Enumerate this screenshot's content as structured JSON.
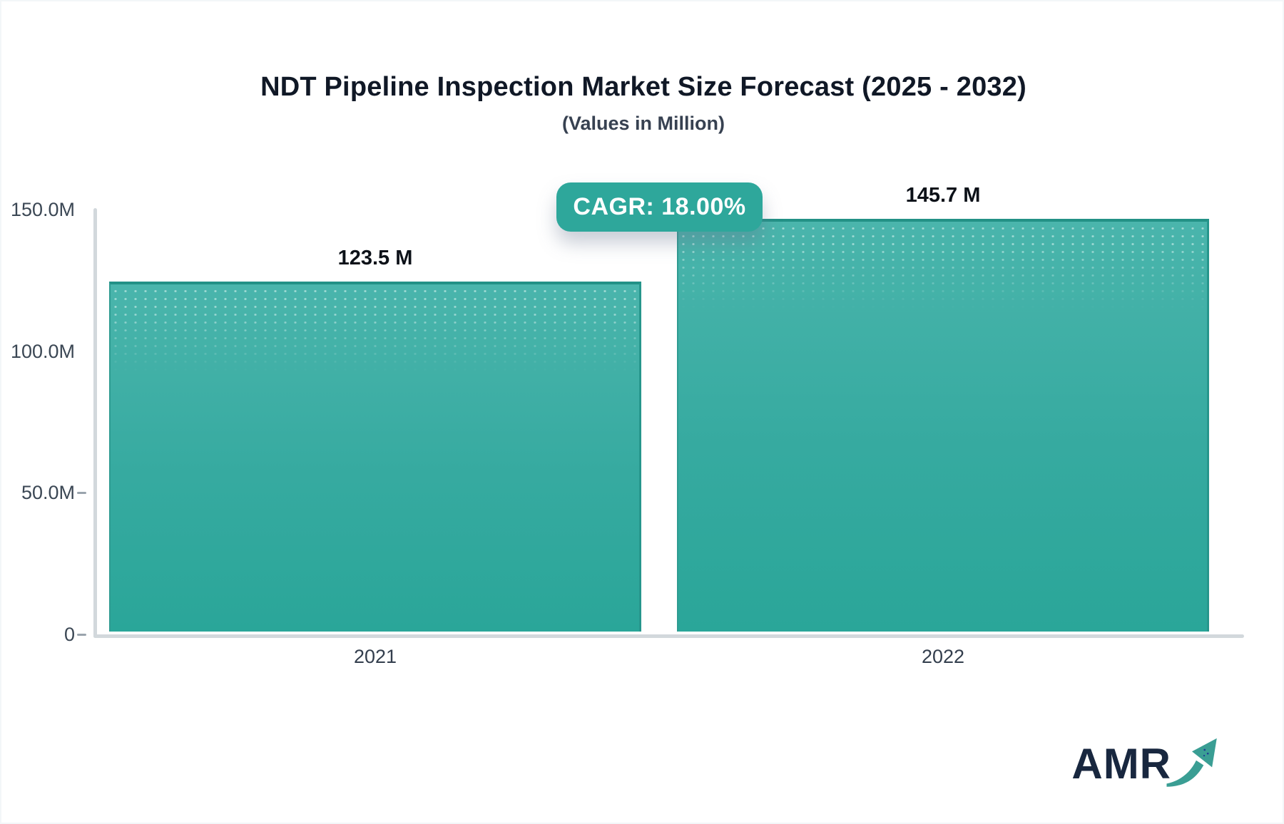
{
  "title": "NDT Pipeline Inspection Market Size Forecast (2025 - 2032)",
  "subtitle": "(Values in Million)",
  "badge": {
    "label": "CAGR: 18.00%"
  },
  "logo": {
    "text": "AMR",
    "arrow_icon": "trend-up-arrow"
  },
  "colors": {
    "bar_top": "#4ab5ac",
    "bar_bottom": "#2aa699",
    "bar_edge": "#239186",
    "badge_bg": "#2ea79b",
    "axis": "#d2d8dc",
    "title_text": "#101826",
    "logo_navy": "#18273f"
  },
  "chart_data": {
    "type": "bar",
    "title": "NDT Pipeline Inspection Market Size Forecast (2025 - 2032)",
    "subtitle": "(Values in Million)",
    "unit": "Million",
    "categories": [
      "2021",
      "2022"
    ],
    "values": [
      123.5,
      145.7
    ],
    "value_labels": [
      "123.5 M",
      "145.7 M"
    ],
    "cagr_label": "CAGR: 18.00%",
    "ylim": [
      0,
      150
    ],
    "grid": "off",
    "legend": "none",
    "yticks": [
      {
        "label": "150.0M",
        "value": 150,
        "dash": false
      },
      {
        "label": "100.0M",
        "value": 100,
        "dash": false
      },
      {
        "label": "50.0M",
        "value": 50,
        "dash": true
      },
      {
        "label": "0",
        "value": 0,
        "dash": true
      }
    ]
  }
}
